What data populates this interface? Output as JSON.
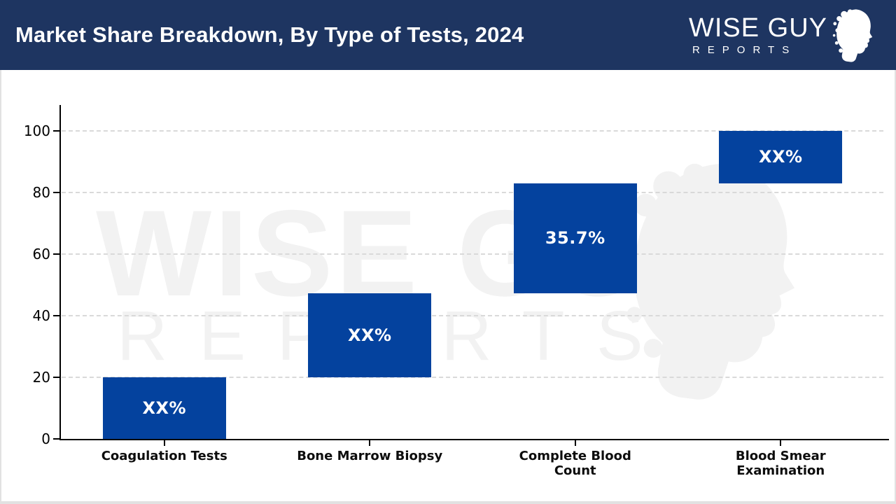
{
  "header": {
    "title": "Market Share Breakdown, By Type of Tests, 2024",
    "bg_color": "#1e3561",
    "logo": {
      "line1": "WISE GUY",
      "line2": "REPORTS"
    }
  },
  "watermark": {
    "line1": "WISE GUY",
    "line2": "REPORTS"
  },
  "chart_data": {
    "type": "bar",
    "variant": "floating-waterfall",
    "title": "Market Share Breakdown, By Type of Tests, 2024",
    "categories": [
      "Coagulation Tests",
      "Bone Marrow Biopsy",
      "Complete Blood Count",
      "Blood Smear Examination"
    ],
    "bars": [
      {
        "category": "Coagulation Tests",
        "category_lines": [
          "Coagulation Tests"
        ],
        "range": [
          0,
          20
        ],
        "value": 20,
        "label": "XX%"
      },
      {
        "category": "Bone Marrow Biopsy",
        "category_lines": [
          "Bone Marrow Biopsy"
        ],
        "range": [
          20,
          47.3
        ],
        "value": 27.3,
        "label": "XX%"
      },
      {
        "category": "Complete Blood Count",
        "category_lines": [
          "Complete Blood",
          "Count"
        ],
        "range": [
          47.3,
          83
        ],
        "value": 35.7,
        "label": "35.7%"
      },
      {
        "category": "Blood Smear Examination",
        "category_lines": [
          "Blood Smear",
          "Examination"
        ],
        "range": [
          83,
          100
        ],
        "value": 17,
        "label": "XX%"
      }
    ],
    "ylim": [
      0,
      100
    ],
    "yticks": [
      0,
      20,
      40,
      60,
      80,
      100
    ],
    "xlabel": "",
    "ylabel": "",
    "grid": "horizontal-dashed",
    "legend": null,
    "bar_color": "#04429e",
    "bar_label_color": "#ffffff",
    "axis_color": "#000000",
    "gridline_color": "#d9d9d9"
  }
}
